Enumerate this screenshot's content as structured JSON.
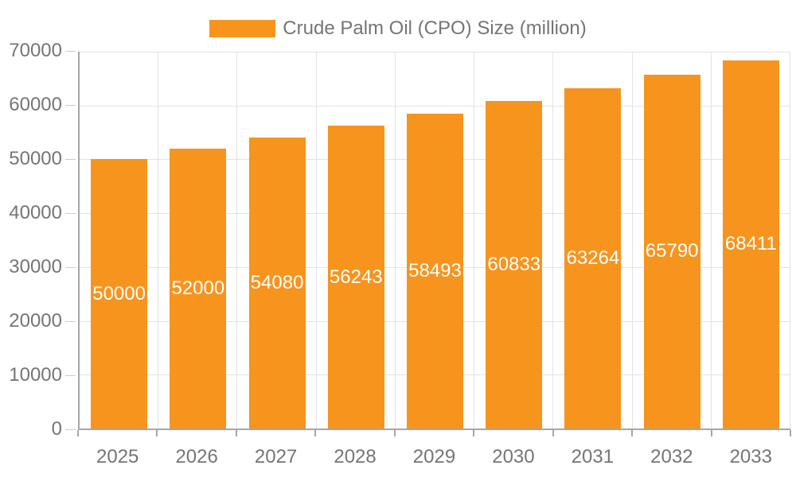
{
  "chart_data": {
    "type": "bar",
    "series_name": "Crude Palm Oil (CPO) Size (million)",
    "categories": [
      "2025",
      "2026",
      "2027",
      "2028",
      "2029",
      "2030",
      "2031",
      "2032",
      "2033"
    ],
    "values": [
      50000,
      52000,
      54080,
      56243,
      58493,
      60833,
      63264,
      65790,
      68411
    ],
    "ylim": [
      0,
      70000
    ],
    "yticks": [
      0,
      10000,
      20000,
      30000,
      40000,
      50000,
      60000,
      70000
    ],
    "grid": true,
    "legend_position": "top-center",
    "value_label_position": "inside-middle",
    "colors": {
      "bar": "#F7941E",
      "axis_text": "#757575",
      "value_label": "#FFFFFF",
      "gridline": "#E3E3E3",
      "axis_line": "#A6A6A6",
      "background": "#FFFFFF"
    }
  }
}
